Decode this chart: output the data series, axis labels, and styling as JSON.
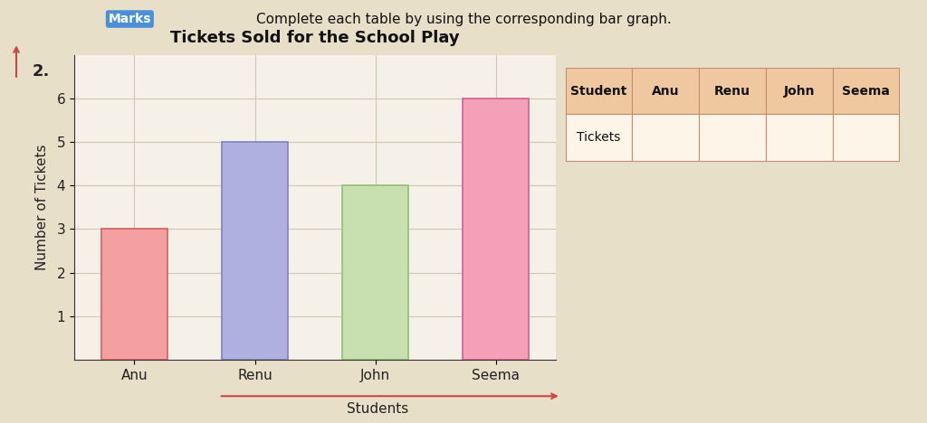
{
  "title": "Tickets Sold for the School Play",
  "xlabel": "Students",
  "ylabel": "Number of Tickets",
  "categories": [
    "Anu",
    "Renu",
    "John",
    "Seema"
  ],
  "values": [
    3,
    5,
    4,
    6
  ],
  "bar_colors": [
    "#f4a0a0",
    "#b0b0e0",
    "#c8e0b0",
    "#f4a0b8"
  ],
  "bar_edge_colors": [
    "#d06060",
    "#8080c0",
    "#90c070",
    "#d06090"
  ],
  "ylim": [
    0,
    7
  ],
  "yticks": [
    1,
    2,
    3,
    4,
    5,
    6
  ],
  "bg_color": "#f5f0e8",
  "grid_color": "#d0c8b0",
  "table_header_row": [
    "Student",
    "Anu",
    "Renu",
    "John",
    "Seema"
  ],
  "table_data_row": [
    "Tickets",
    "",
    "",
    "",
    ""
  ],
  "table_header_bg": "#f0c8a0",
  "table_cell_bg": "#fdf5e8",
  "heading_text": "Complete each table by using the corresponding bar graph.",
  "number_label": "2.",
  "top_label": "Marks",
  "fig_bg": "#e8dfc8"
}
